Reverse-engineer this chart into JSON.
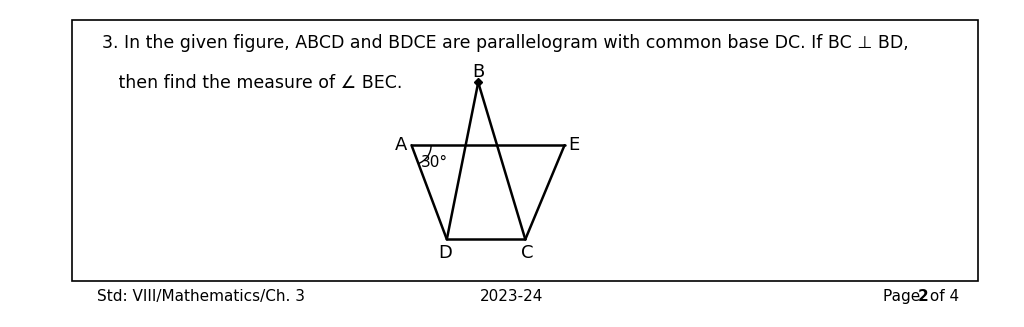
{
  "title_line1": "3. In the given figure, ABCD and BDCE are parallelogram with common base DC. If BC ⊥ BD,",
  "title_line2": "   then find the measure of ∠ BEC.",
  "footer_left": "Std: VIII/Mathematics/Ch. 3",
  "footer_center": "2023-24",
  "footer_right_pre": "Page ",
  "footer_right_bold": "2",
  "footer_right_post": " of 4",
  "angle_label": "30°",
  "edges": [
    [
      "A",
      "E"
    ],
    [
      "A",
      "D"
    ],
    [
      "B",
      "D"
    ],
    [
      "B",
      "C"
    ],
    [
      "D",
      "C"
    ],
    [
      "C",
      "E"
    ]
  ],
  "bg_color": "#ffffff",
  "border_color": "#000000",
  "line_color": "#000000",
  "text_color": "#000000",
  "font_size_title": 12.5,
  "font_size_footer": 11,
  "font_size_label": 13,
  "font_size_angle": 11
}
